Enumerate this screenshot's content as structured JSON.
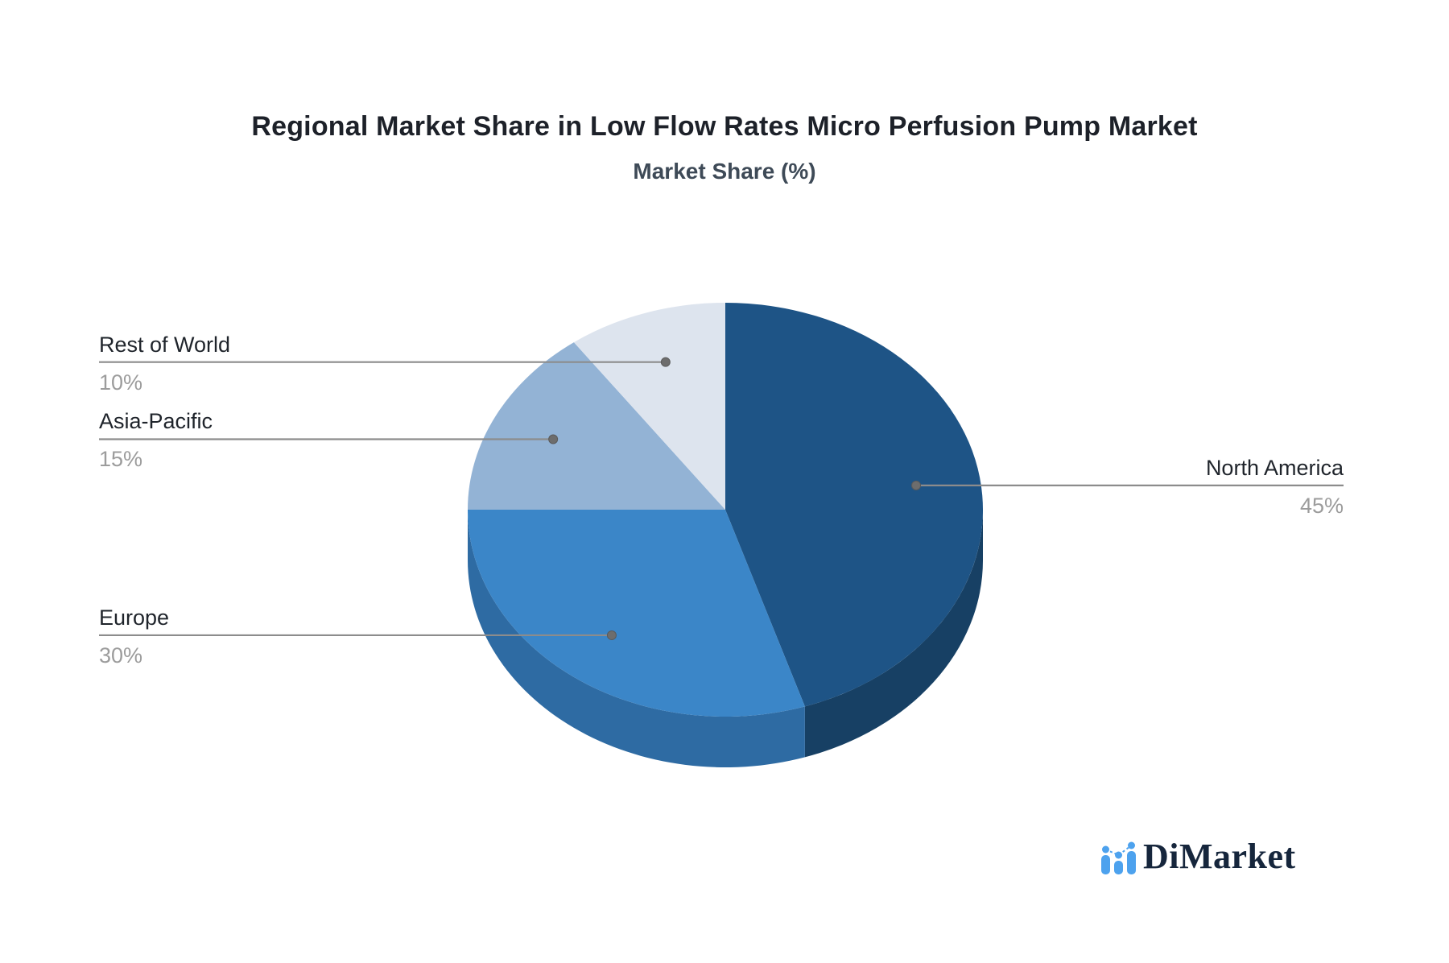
{
  "title": "Regional Market Share in Low Flow Rates Micro Perfusion Pump Market",
  "subtitle": "Market Share (%)",
  "chart_data": {
    "type": "pie",
    "style": "3d",
    "title": "Regional Market Share in Low Flow Rates Micro Perfusion Pump Market",
    "subtitle": "Market Share (%)",
    "categories": [
      "North America",
      "Europe",
      "Asia-Pacific",
      "Rest of World"
    ],
    "values": [
      45,
      30,
      15,
      10
    ],
    "value_labels": [
      "45%",
      "30%",
      "15%",
      "10%"
    ],
    "unit": "%",
    "start_angle_deg": 0,
    "direction": "clockwise",
    "slice_colors": [
      "#1e5486",
      "#3b86c8",
      "#93b3d5",
      "#dde4ee"
    ],
    "slice_side_colors": [
      "#174064",
      "#2e6ba3",
      "#7e9cbd",
      "#c3cede"
    ],
    "legend_position": "callout-labels",
    "grid": false
  },
  "callout": {
    "line_color": "#8c8c8c",
    "dot_color": "#6d6d6d",
    "label_color": "#1f242b",
    "percent_color": "#9c9c9c"
  },
  "logo": {
    "text": "DiMarket",
    "icon": "bar-chart-logo-icon",
    "icon_color": "#4da2ee",
    "text_color": "#16263c"
  }
}
